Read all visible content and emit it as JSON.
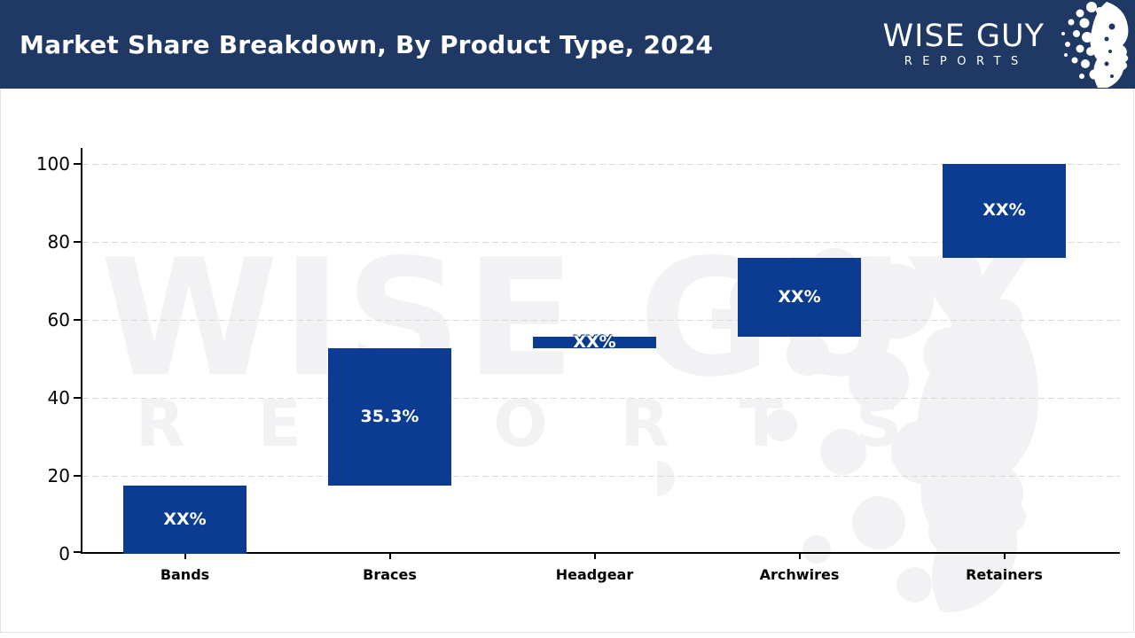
{
  "header": {
    "title": "Market Share Breakdown, By Product Type, 2024",
    "logo": {
      "line1": "WISE GUY",
      "line2": "REPORTS"
    }
  },
  "watermark": {
    "line1": "WISE GUY",
    "line2": "REPORTS"
  },
  "colors": {
    "header_bg": "#203864",
    "bar": "#0b3c91",
    "grid": "#d9d9d9",
    "axis": "#000000",
    "bar_label": "#ffffff",
    "watermark": "#f2f2f4"
  },
  "chart_data": {
    "type": "bar",
    "subtype": "waterfall",
    "title": "Market Share Breakdown, By Product Type, 2024",
    "xlabel": "",
    "ylabel": "",
    "categories": [
      "Bands",
      "Braces",
      "Headgear",
      "Archwires",
      "Retainers"
    ],
    "segments": [
      {
        "category": "Bands",
        "start": 0,
        "end": 17.4,
        "label": "XX%"
      },
      {
        "category": "Braces",
        "start": 17.4,
        "end": 52.7,
        "label": "35.3%"
      },
      {
        "category": "Headgear",
        "start": 52.7,
        "end": 55.7,
        "label": "XX%"
      },
      {
        "category": "Archwires",
        "start": 55.7,
        "end": 76.0,
        "label": "XX%"
      },
      {
        "category": "Retainers",
        "start": 76.0,
        "end": 100.0,
        "label": "XX%"
      }
    ],
    "yticks": [
      0,
      20,
      40,
      60,
      80,
      100
    ],
    "ylim": [
      0,
      100
    ],
    "grid": "horizontal-dashed",
    "legend": "none"
  }
}
